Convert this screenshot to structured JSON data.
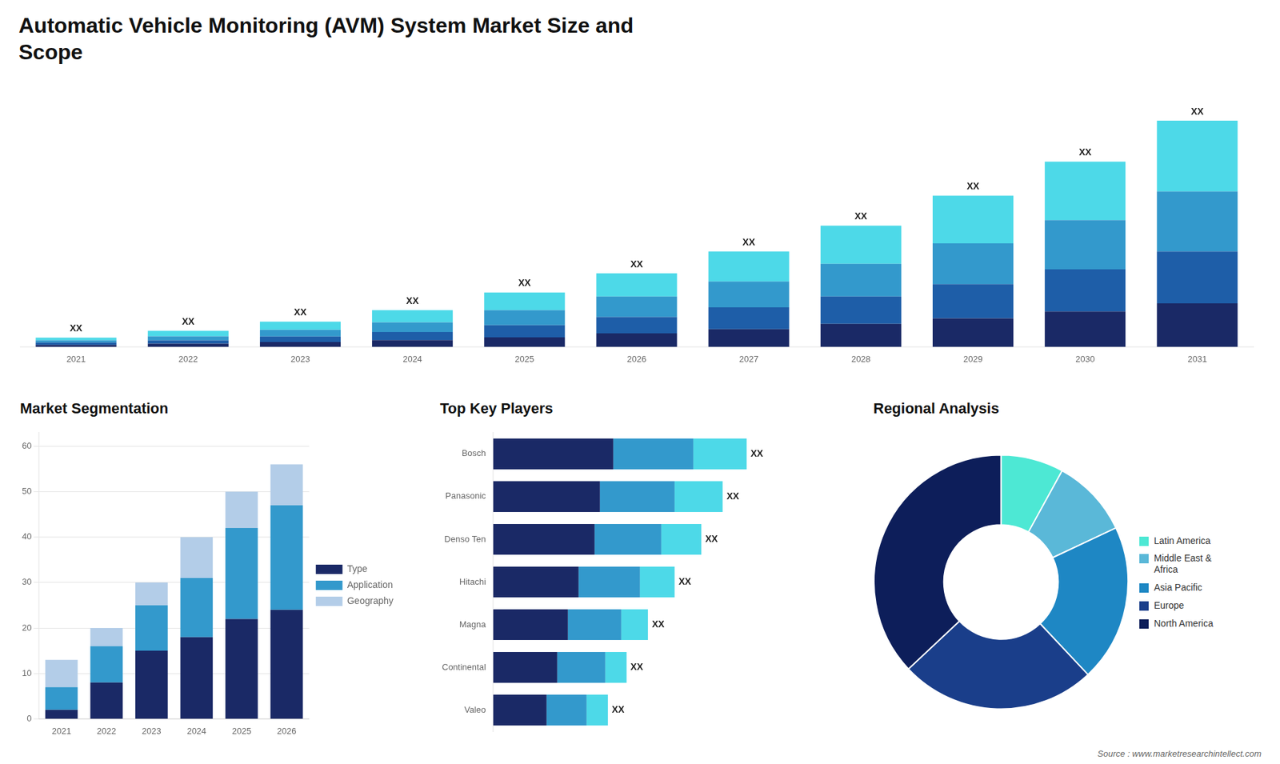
{
  "title": "Automatic Vehicle Monitoring (AVM) System Market Size and\nScope",
  "annotations": [
    "Source : www.marketresearchintellect.com"
  ],
  "chart_data": [
    {
      "type": "bar",
      "categories": [
        "2021",
        "2022",
        "2023",
        "2024",
        "2025",
        "2026",
        "2027",
        "2028",
        "2029",
        "2030",
        "2031"
      ],
      "series": [
        {
          "color": "#1a2966",
          "values": [
            0.8,
            1.2,
            1.8,
            2.5,
            3.5,
            5.0,
            6.5,
            8.5,
            10.5,
            13.0,
            16.0
          ]
        },
        {
          "color": "#1e5ea8",
          "values": [
            0.8,
            1.2,
            2.0,
            3.0,
            4.5,
            6.0,
            8.0,
            10.0,
            12.5,
            15.5,
            19.0
          ]
        },
        {
          "color": "#3399cc",
          "values": [
            0.8,
            1.5,
            2.5,
            3.5,
            5.5,
            7.5,
            9.5,
            12.0,
            15.0,
            18.0,
            22.0
          ]
        },
        {
          "color": "#4dd9e8",
          "values": [
            1.0,
            2.0,
            3.0,
            4.5,
            6.5,
            8.5,
            11.0,
            14.0,
            17.5,
            21.5,
            26.0
          ]
        }
      ],
      "stacked": true,
      "ylim": [
        0,
        97.94
      ],
      "tick_labels": "x",
      "grid": false,
      "annotations": [
        "XX",
        "XX",
        "XX",
        "XX",
        "XX",
        "XX",
        "XX",
        "XX",
        "XX",
        "XX",
        "XX"
      ]
    },
    {
      "type": "bar",
      "title": "Market Segmentation",
      "categories": [
        "2021",
        "2022",
        "2023",
        "2024",
        "2025",
        "2026"
      ],
      "series": [
        {
          "name": "Type",
          "color": "#1a2966",
          "values": [
            2,
            8,
            15,
            18,
            22,
            24
          ]
        },
        {
          "name": "Application",
          "color": "#3399cc",
          "values": [
            5,
            8,
            10,
            13,
            20,
            23
          ]
        },
        {
          "name": "Geography",
          "color": "#b3cde8",
          "values": [
            6,
            4,
            5,
            9,
            8,
            9
          ]
        }
      ],
      "stacked": true,
      "ylim": [
        0,
        63
      ],
      "yticks": [
        0,
        10,
        20,
        30,
        40,
        50,
        60
      ],
      "grid": true,
      "legend": "right"
    },
    {
      "type": "bar",
      "title": "Top Key Players",
      "orientation": "horizontal",
      "categories": [
        "Bosch",
        "Panasonic",
        "Denso Ten",
        "Hitachi",
        "Magna",
        "Continental",
        "Valeo"
      ],
      "series": [
        {
          "color": "#1a2966",
          "values": [
            4.5,
            4.0,
            3.8,
            3.2,
            2.8,
            2.4,
            2.0
          ]
        },
        {
          "color": "#3399cc",
          "values": [
            3.0,
            2.8,
            2.5,
            2.3,
            2.0,
            1.8,
            1.5
          ]
        },
        {
          "color": "#4dd9e8",
          "values": [
            2.0,
            1.8,
            1.5,
            1.3,
            1.0,
            0.8,
            0.8
          ]
        }
      ],
      "stacked": true,
      "xlim": [
        0,
        12
      ],
      "tick_labels": "y",
      "grid": false,
      "annotations": [
        "XX",
        "XX",
        "XX",
        "XX",
        "XX",
        "XX",
        "XX"
      ]
    },
    {
      "type": "doughnut",
      "title": "Regional Analysis",
      "categories": [
        "Latin America",
        "Middle East &\nAfrica",
        "Asia Pacific",
        "Europe",
        "North America"
      ],
      "values": [
        8,
        10,
        20,
        25,
        37
      ],
      "colors": [
        "#4de8d4",
        "#5ab8d8",
        "#1e87c4",
        "#1a3e8a",
        "#0d1e5a"
      ],
      "legend": "right"
    }
  ]
}
